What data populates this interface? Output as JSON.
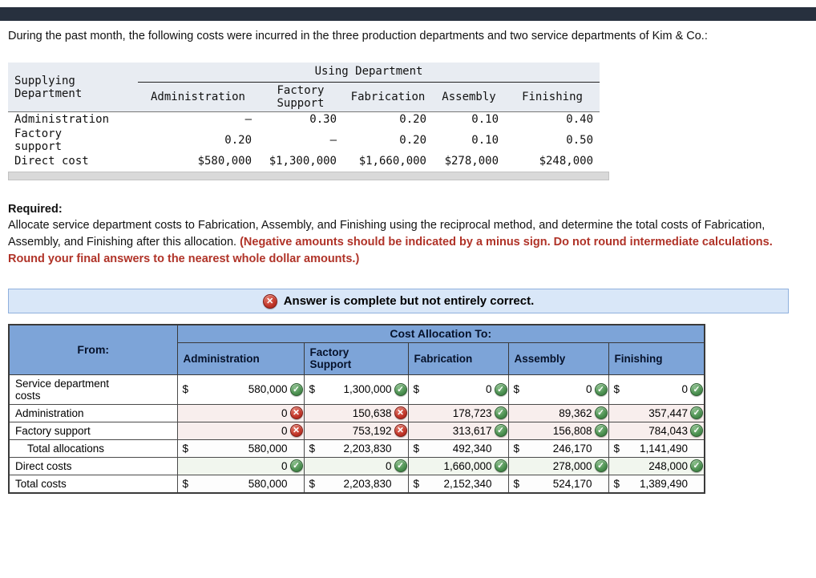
{
  "intro": {
    "text": "During the past month, the following costs were incurred in the three production departments and two service departments of Kim & Co.:"
  },
  "data_table": {
    "span_header": "Using Department",
    "supplying_header": "Supplying\nDepartment",
    "columns": [
      "Administration",
      "Factory\nSupport",
      "Fabrication",
      "Assembly",
      "Finishing"
    ],
    "rows": [
      {
        "label": "Administration",
        "values": [
          "–",
          "0.30",
          "0.20",
          "0.10",
          "0.40"
        ]
      },
      {
        "label": "Factory\nsupport",
        "values": [
          "0.20",
          "–",
          "0.20",
          "0.10",
          "0.50"
        ]
      },
      {
        "label": "Direct cost",
        "values": [
          "$580,000",
          "$1,300,000",
          "$1,660,000",
          "$278,000",
          "$248,000"
        ]
      }
    ]
  },
  "required": {
    "title": "Required:",
    "normal": "Allocate service department costs to Fabrication, Assembly, and Finishing using the reciprocal method, and determine the total costs of Fabrication, Assembly, and Finishing after this allocation. ",
    "emphasis": "(Negative amounts should be indicated by a minus sign. Do not round intermediate calculations. Round your final answers to the nearest whole dollar amounts.)"
  },
  "banner": {
    "text": "Answer is complete but not entirely correct."
  },
  "answer_table": {
    "span_header": "Cost Allocation To:",
    "from_header": "From:",
    "columns": [
      "Administration",
      "Factory\nSupport",
      "Fabrication",
      "Assembly",
      "Finishing"
    ],
    "rows": [
      {
        "label": "Service department\ncosts",
        "cells": [
          {
            "dollar": "$",
            "value": "580,000",
            "mark": "check"
          },
          {
            "dollar": "$",
            "value": "1,300,000",
            "mark": "check"
          },
          {
            "dollar": "$",
            "value": "0",
            "mark": "check"
          },
          {
            "dollar": "$",
            "value": "0",
            "mark": "check"
          },
          {
            "dollar": "$",
            "value": "0",
            "mark": "check"
          }
        ]
      },
      {
        "label": "Administration",
        "cells": [
          {
            "dollar": "",
            "value": "0",
            "mark": "x"
          },
          {
            "dollar": "",
            "value": "150,638",
            "mark": "x"
          },
          {
            "dollar": "",
            "value": "178,723",
            "mark": "check"
          },
          {
            "dollar": "",
            "value": "89,362",
            "mark": "check"
          },
          {
            "dollar": "",
            "value": "357,447",
            "mark": "check"
          }
        ]
      },
      {
        "label": "Factory support",
        "cells": [
          {
            "dollar": "",
            "value": "0",
            "mark": "x"
          },
          {
            "dollar": "",
            "value": "753,192",
            "mark": "x"
          },
          {
            "dollar": "",
            "value": "313,617",
            "mark": "check"
          },
          {
            "dollar": "",
            "value": "156,808",
            "mark": "check"
          },
          {
            "dollar": "",
            "value": "784,043",
            "mark": "check"
          }
        ]
      },
      {
        "label": "Total allocations",
        "cells": [
          {
            "dollar": "$",
            "value": "580,000",
            "mark": "none"
          },
          {
            "dollar": "$",
            "value": "2,203,830",
            "mark": "none"
          },
          {
            "dollar": "$",
            "value": "492,340",
            "mark": "none"
          },
          {
            "dollar": "$",
            "value": "246,170",
            "mark": "none"
          },
          {
            "dollar": "$",
            "value": "1,141,490",
            "mark": "none"
          }
        ]
      },
      {
        "label": "Direct costs",
        "cells": [
          {
            "dollar": "",
            "value": "0",
            "mark": "check"
          },
          {
            "dollar": "",
            "value": "0",
            "mark": "check"
          },
          {
            "dollar": "",
            "value": "1,660,000",
            "mark": "check"
          },
          {
            "dollar": "",
            "value": "278,000",
            "mark": "check"
          },
          {
            "dollar": "",
            "value": "248,000",
            "mark": "check"
          }
        ]
      },
      {
        "label": "Total costs",
        "cells": [
          {
            "dollar": "$",
            "value": "580,000",
            "mark": "none"
          },
          {
            "dollar": "$",
            "value": "2,203,830",
            "mark": "none"
          },
          {
            "dollar": "$",
            "value": "2,152,340",
            "mark": "none"
          },
          {
            "dollar": "$",
            "value": "524,170",
            "mark": "none"
          },
          {
            "dollar": "$",
            "value": "1,389,490",
            "mark": "none"
          }
        ]
      }
    ]
  },
  "colors": {
    "header_blue": "#7da4d8",
    "banner_blue": "#d9e7f8",
    "check_green": "#4a8f4f",
    "x_red": "#c03427",
    "emphasis_red": "#b03328",
    "topbar_dark": "#27303e"
  }
}
